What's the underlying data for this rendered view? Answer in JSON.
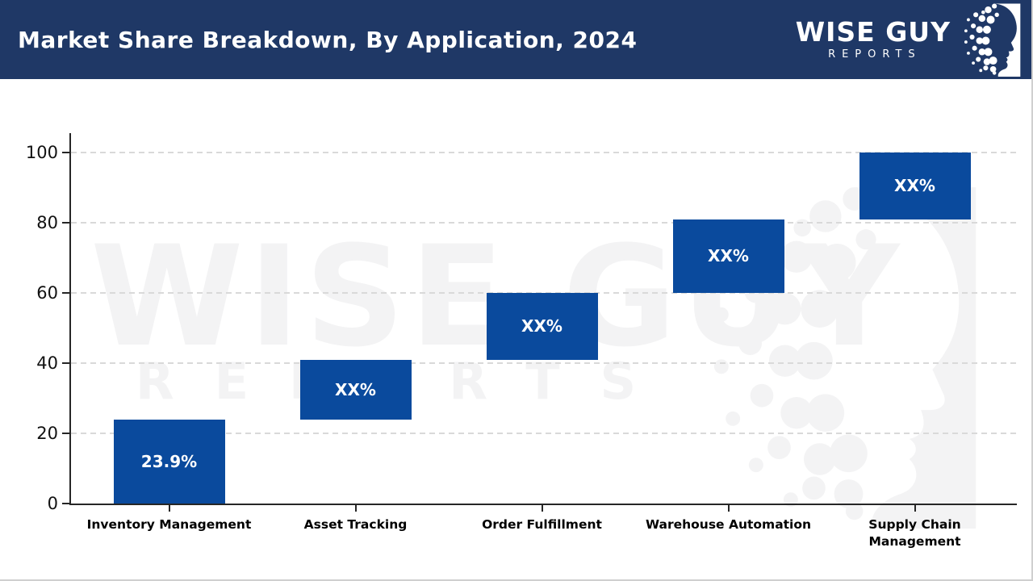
{
  "header": {
    "title": "Market Share Breakdown, By Application, 2024",
    "logo": {
      "wordmark": "WISE GUY",
      "subtext": "REPORTS"
    }
  },
  "watermark": {
    "wordmark": "WISE GUY",
    "subtext": "REPORTS"
  },
  "colors": {
    "header_bg": "#1F3866",
    "bar": "#0A4A9D",
    "bar_label": "#FFFFFF",
    "gridline": "#D9D9D9",
    "axis": "#262626",
    "watermark": "#F3F3F4"
  },
  "chart_data": {
    "type": "bar",
    "subtype": "waterfall",
    "title": "Market Share Breakdown, By Application, 2024",
    "xlabel": "",
    "ylabel": "",
    "categories": [
      "Inventory Management",
      "Asset Tracking",
      "Order Fulfillment",
      "Warehouse Automation",
      "Supply Chain Management"
    ],
    "segments": [
      {
        "category": "Inventory Management",
        "start": 0,
        "end": 23.9,
        "label": "23.9%"
      },
      {
        "category": "Asset Tracking",
        "start": 23.9,
        "end": 41,
        "label": "XX%"
      },
      {
        "category": "Order Fulfillment",
        "start": 41,
        "end": 60,
        "label": "XX%"
      },
      {
        "category": "Warehouse Automation",
        "start": 60,
        "end": 81,
        "label": "XX%"
      },
      {
        "category": "Supply Chain Management",
        "start": 81,
        "end": 100,
        "label": "XX%"
      }
    ],
    "yticks": [
      0,
      20,
      40,
      60,
      80,
      100
    ],
    "ylim": [
      0,
      105
    ],
    "grid": "horizontal-dashed",
    "legend": "none"
  }
}
